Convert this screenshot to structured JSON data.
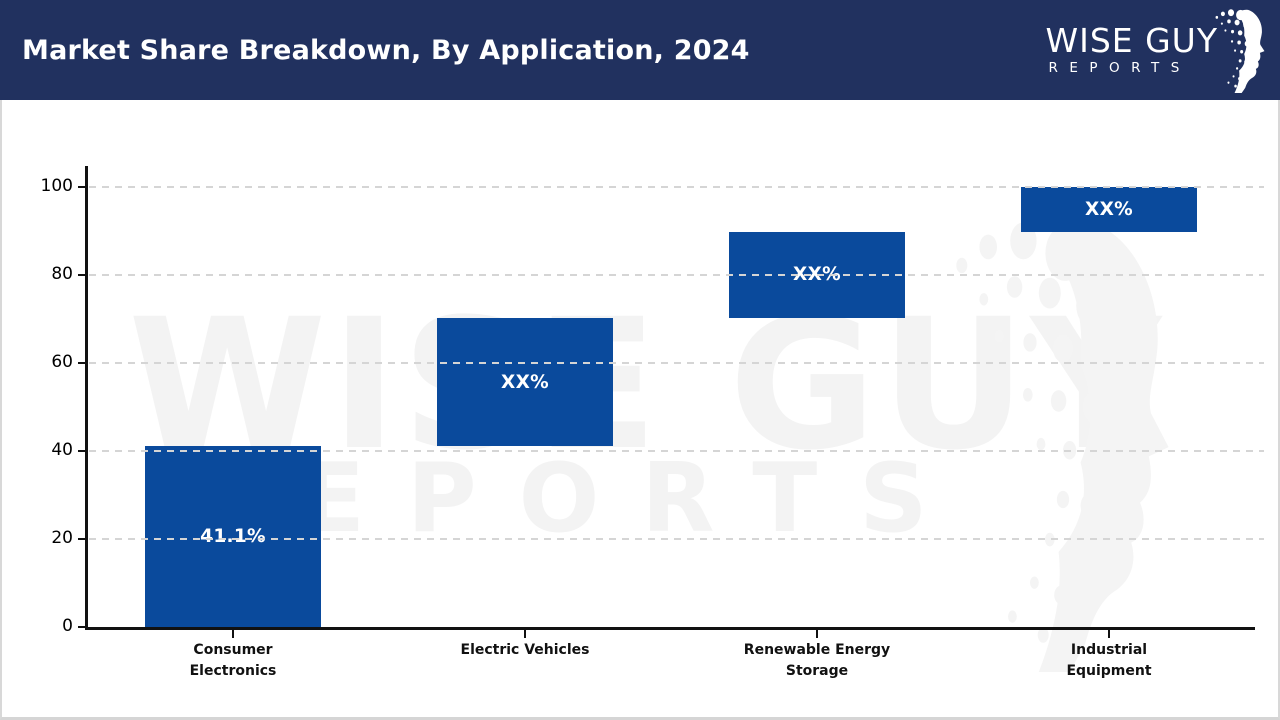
{
  "header": {
    "title": "Market Share Breakdown, By Application, 2024",
    "logo": {
      "line1": "WISE GUY",
      "line2": "REPORTS"
    }
  },
  "watermark": {
    "line1": "WISE GUY",
    "line2": "REPORTS"
  },
  "colors": {
    "header_bg": "#21315f",
    "bar": "#0a4a9c",
    "bar_label": "#ffffff",
    "grid": "#d5d5d5",
    "axis": "#111111",
    "watermark": "#f3f3f3",
    "frame_border": "#d8d8d8"
  },
  "chart_data": {
    "type": "bar",
    "variant": "floating-stacked-percentage",
    "title": "Market Share Breakdown, By Application, 2024",
    "categories": [
      "Consumer Electronics",
      "Electric Vehicles",
      "Renewable Energy Storage",
      "Industrial Equipment"
    ],
    "category_label_lines": [
      [
        "Consumer",
        "Electronics"
      ],
      [
        "Electric Vehicles"
      ],
      [
        "Renewable Energy",
        "Storage"
      ],
      [
        "Industrial",
        "Equipment"
      ]
    ],
    "segments": [
      {
        "category": "Consumer Electronics",
        "start": 0,
        "end": 41.1,
        "value_label": "41.1%"
      },
      {
        "category": "Electric Vehicles",
        "start": 41.1,
        "end": 70.2,
        "value_label": "XX%"
      },
      {
        "category": "Renewable Energy Storage",
        "start": 70.2,
        "end": 89.8,
        "value_label": "XX%"
      },
      {
        "category": "Industrial Equipment",
        "start": 89.8,
        "end": 100,
        "value_label": "XX%"
      }
    ],
    "xlabel": "",
    "ylabel": "",
    "ylim": [
      0,
      100
    ],
    "yticks": [
      0,
      20,
      40,
      60,
      80,
      100
    ],
    "grid": "dashed-horizontal",
    "legend_position": "none"
  }
}
